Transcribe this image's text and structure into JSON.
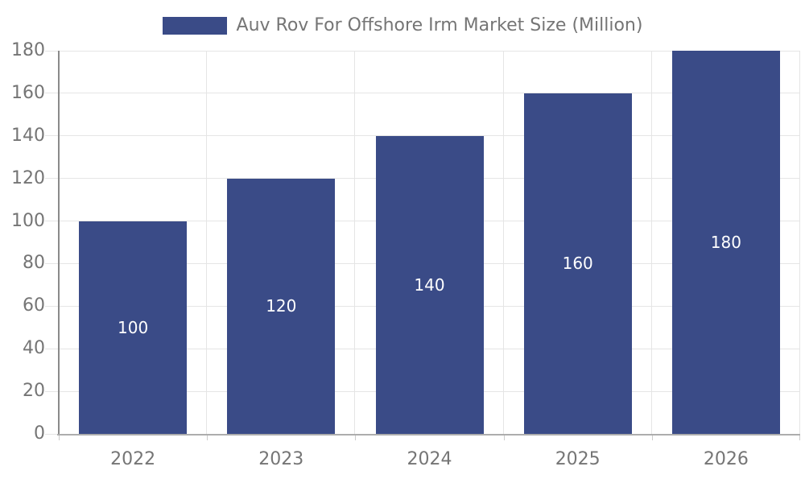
{
  "chart_data": {
    "type": "bar",
    "title": "Auv Rov For Offshore Irm Market Size (Million)",
    "legend": {
      "label": "Auv Rov For Offshore Irm Market Size (Million)",
      "position": "top"
    },
    "categories": [
      "2022",
      "2023",
      "2024",
      "2025",
      "2026"
    ],
    "values": [
      100,
      120,
      140,
      160,
      180
    ],
    "series": [
      {
        "name": "Auv Rov For Offshore Irm Market Size (Million)",
        "values": [
          100,
          120,
          140,
          160,
          180
        ]
      }
    ],
    "xlabel": "",
    "ylabel": "",
    "ylim": [
      0,
      180
    ],
    "yticks": [
      0,
      20,
      40,
      60,
      80,
      100,
      120,
      140,
      160,
      180
    ],
    "grid": true,
    "value_label_position": "inside-center",
    "colors": {
      "bar": "#3A4B87",
      "value_label": "#FFFFFF",
      "axis_text": "#757575",
      "legend_text": "#757575",
      "gridline": "#E5E5E5",
      "axis_line_left": "#8A8A8A",
      "axis_line_bottom": "#ADADAD",
      "tick": "#CCCCCC",
      "background": "#FFFFFF"
    }
  }
}
